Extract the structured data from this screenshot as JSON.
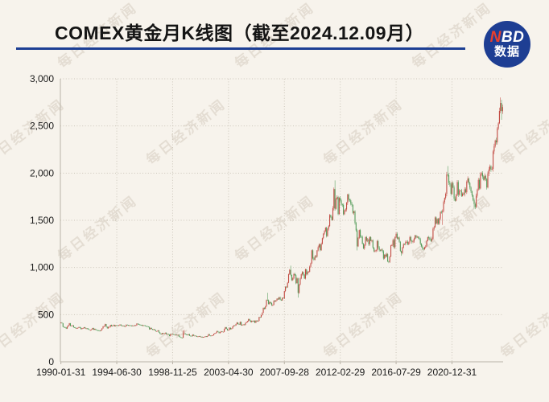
{
  "header": {
    "title": "COMEX黄金月K线图（截至2024.12.09月）",
    "rule_color": "#1d3f94",
    "logo": {
      "n": "N",
      "bd": "BD",
      "sub": "数据",
      "bg": "#1e3e93",
      "accent": "#e8402d"
    }
  },
  "watermark": {
    "text": "每日经济新闻"
  },
  "chart_data": {
    "type": "candlestick",
    "title": "COMEX黄金月K线图（截至2024.12.09月）",
    "x_start_month": "1990-01",
    "x_end_month": "2024-12",
    "x_tick_labels": [
      "1990-01-31",
      "1994-06-30",
      "1998-11-25",
      "2003-04-30",
      "2007-09-28",
      "2012-02-29",
      "2016-07-29",
      "2020-12-31"
    ],
    "x_tick_month_indices": [
      0,
      53,
      106,
      159,
      212,
      265,
      318,
      371
    ],
    "y_ticks": [
      0,
      500,
      1000,
      1500,
      2000,
      2500,
      3000
    ],
    "y_tick_labels": [
      "0",
      "500",
      "1,000",
      "1,500",
      "2,000",
      "2,500",
      "3,000"
    ],
    "ylim": [
      0,
      3000
    ],
    "grid": "dotted",
    "legend": "none",
    "up_color": "#c24a42",
    "down_color": "#529b58",
    "first_open": 410,
    "default_wick_pct": 0.012,
    "monthly_close": [
      415,
      408,
      370,
      368,
      363,
      352,
      372,
      388,
      408,
      380,
      384,
      386,
      366,
      363,
      355,
      357,
      360,
      368,
      362,
      347,
      354,
      357,
      366,
      353,
      354,
      353,
      344,
      337,
      337,
      343,
      358,
      340,
      349,
      338,
      334,
      333,
      330,
      327,
      337,
      354,
      375,
      378,
      400,
      371,
      355,
      369,
      370,
      391,
      378,
      382,
      390,
      377,
      387,
      386,
      384,
      387,
      395,
      384,
      383,
      383,
      375,
      376,
      392,
      390,
      385,
      387,
      383,
      382,
      384,
      382,
      387,
      387,
      405,
      400,
      396,
      391,
      390,
      382,
      387,
      386,
      379,
      378,
      372,
      369,
      345,
      359,
      348,
      340,
      345,
      334,
      324,
      324,
      332,
      311,
      297,
      290,
      304,
      297,
      301,
      308,
      293,
      296,
      288,
      273,
      296,
      292,
      294,
      288,
      285,
      287,
      280,
      286,
      268,
      261,
      255,
      254,
      299,
      300,
      291,
      290,
      283,
      293,
      276,
      275,
      272,
      288,
      276,
      277,
      273,
      265,
      269,
      272,
      264,
      266,
      257,
      263,
      265,
      270,
      265,
      273,
      293,
      278,
      274,
      278,
      282,
      296,
      303,
      308,
      326,
      318,
      304,
      312,
      323,
      317,
      318,
      347,
      367,
      350,
      334,
      339,
      361,
      346,
      354,
      375,
      386,
      384,
      398,
      416,
      400,
      395,
      423,
      387,
      393,
      395,
      391,
      412,
      420,
      429,
      453,
      438,
      422,
      435,
      428,
      435,
      414,
      437,
      429,
      433,
      473,
      470,
      495,
      518,
      571,
      561,
      586,
      654,
      653,
      613,
      633,
      623,
      599,
      603,
      646,
      638,
      651,
      669,
      664,
      683,
      659,
      650,
      679,
      672,
      750,
      795,
      789,
      838,
      928,
      975,
      921,
      865,
      885,
      930,
      918,
      833,
      884,
      730,
      819,
      884,
      928,
      952,
      922,
      883,
      980,
      927,
      953,
      953,
      1008,
      1045,
      1182,
      1096,
      1083,
      1118,
      1114,
      1180,
      1215,
      1245,
      1183,
      1250,
      1310,
      1357,
      1386,
      1421,
      1333,
      1411,
      1438,
      1556,
      1535,
      1502,
      1628,
      1831,
      1622,
      1725,
      1746,
      1566,
      1737,
      1711,
      1668,
      1664,
      1564,
      1604,
      1615,
      1687,
      1774,
      1719,
      1712,
      1676,
      1662,
      1578,
      1595,
      1472,
      1393,
      1224,
      1312,
      1396,
      1327,
      1323,
      1250,
      1202,
      1240,
      1321,
      1284,
      1296,
      1246,
      1322,
      1282,
      1287,
      1209,
      1171,
      1176,
      1184,
      1279,
      1213,
      1183,
      1182,
      1189,
      1172,
      1095,
      1135,
      1115,
      1141,
      1065,
      1060,
      1116,
      1234,
      1234,
      1290,
      1215,
      1321,
      1357,
      1307,
      1317,
      1272,
      1174,
      1152,
      1211,
      1248,
      1247,
      1268,
      1272,
      1242,
      1268,
      1322,
      1285,
      1271,
      1275,
      1303,
      1340,
      1318,
      1325,
      1315,
      1300,
      1251,
      1223,
      1202,
      1192,
      1215,
      1221,
      1281,
      1321,
      1313,
      1292,
      1281,
      1306,
      1410,
      1426,
      1530,
      1466,
      1513,
      1464,
      1519,
      1588,
      1586,
      1597,
      1694,
      1737,
      1781,
      1986,
      1979,
      1896,
      1880,
      1781,
      1895,
      1848,
      1729,
      1708,
      1768,
      1905,
      1772,
      1814,
      1816,
      1757,
      1784,
      1775,
      1829,
      1797,
      1909,
      1942,
      1897,
      1848,
      1807,
      1766,
      1716,
      1672,
      1641,
      1760,
      1826,
      1928,
      1837,
      1987,
      1999,
      1964,
      1929,
      1971,
      1940,
      1848,
      1994,
      2038,
      2072,
      2040,
      2045,
      2230,
      2286,
      2346,
      2326,
      2473,
      2528,
      2659,
      2744,
      2657,
      2700
    ],
    "wick_overrides": {
      "116": {
        "high": 330
      },
      "117": {
        "high": 339
      },
      "196": {
        "high": 732
      },
      "218": {
        "high": 1020
      },
      "225": {
        "low": 681
      },
      "260": {
        "high": 1923
      },
      "281": {
        "low": 1180
      },
      "311": {
        "low": 1046
      },
      "323": {
        "low": 1124
      },
      "362": {
        "low": 1451
      },
      "367": {
        "high": 2075
      },
      "392": {
        "low": 1622
      },
      "393": {
        "low": 1618
      },
      "417": {
        "high": 2802
      },
      "418": {
        "low": 2565
      },
      "419": {
        "high": 2726,
        "low": 2628
      }
    }
  }
}
